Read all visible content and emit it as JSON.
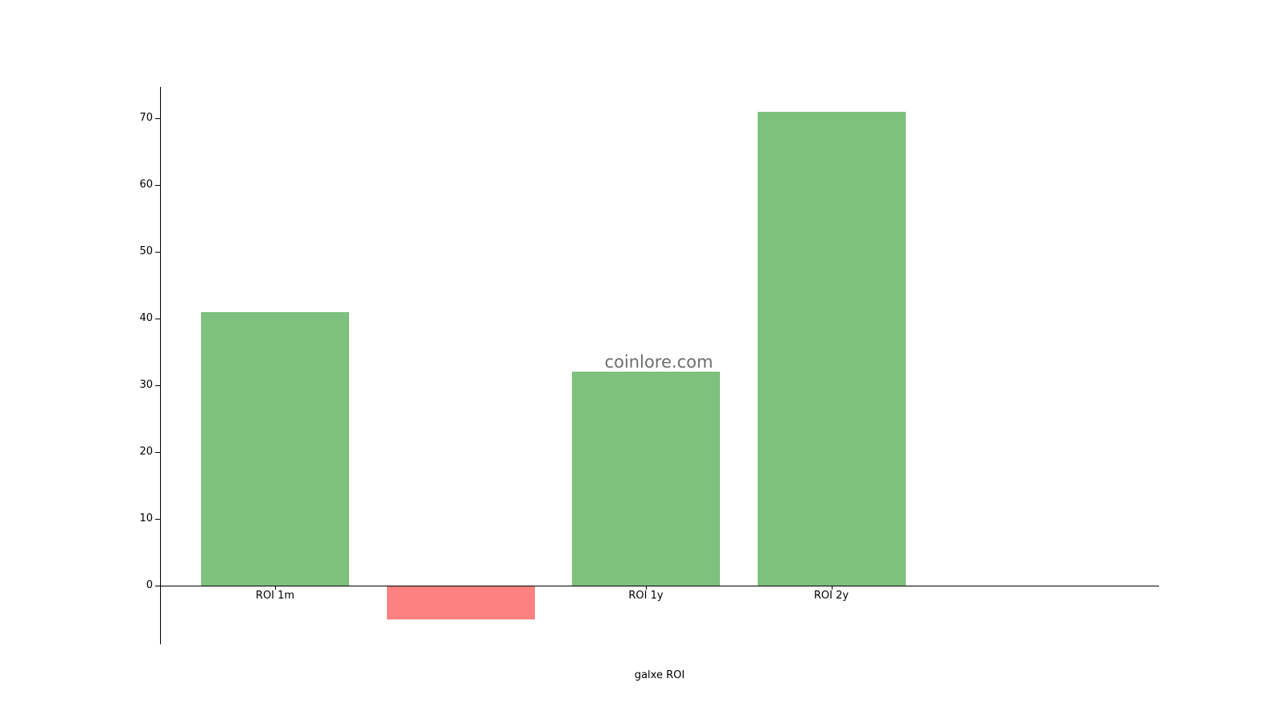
{
  "page": {
    "background_color": "#ffffff"
  },
  "chart_data": {
    "type": "bar",
    "title": "",
    "xlabel": "galxe ROI",
    "ylabel": "",
    "categories": [
      "ROI 1m",
      "",
      "ROI 1y",
      "ROI 2y"
    ],
    "values": [
      41,
      -5,
      32,
      71
    ],
    "series_note": "single series; second category label is hidden behind the negative bar",
    "yticks": [
      0,
      10,
      20,
      30,
      40,
      50,
      60,
      70
    ],
    "ylim": [
      -8.8,
      74.7
    ],
    "bar_colors": [
      "#7ec07e",
      "#fd8181",
      "#7ec07e",
      "#7ec07e"
    ],
    "positive_color": "#7ec07e",
    "negative_color": "#fd8181",
    "axis_color": "#000000",
    "tick_label_color": "#000000",
    "grid": false,
    "legend": null,
    "watermark": {
      "text": "coinlore.com",
      "color": "#6d6d6d"
    }
  }
}
